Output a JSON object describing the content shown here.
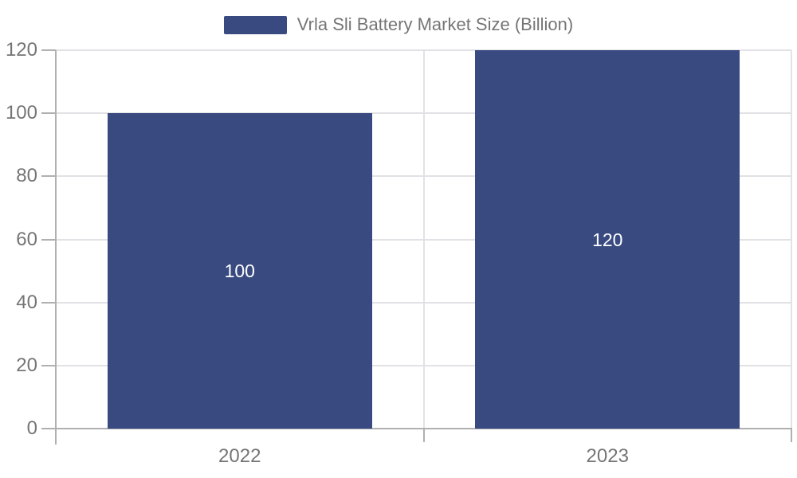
{
  "chart_data": {
    "type": "bar",
    "title": "",
    "legend": {
      "label": "Vrla Sli Battery Market Size (Billion)",
      "position": "top"
    },
    "categories": [
      "2022",
      "2023"
    ],
    "series": [
      {
        "name": "Vrla Sli Battery Market Size (Billion)",
        "values": [
          100,
          120
        ]
      }
    ],
    "bar_value_labels": [
      "100",
      "120"
    ],
    "xlabel": "",
    "ylabel": "",
    "ylim": [
      0,
      120
    ],
    "yticks": [
      0,
      20,
      40,
      60,
      80,
      100,
      120
    ],
    "grid": true,
    "colors": {
      "bar": "#394A81",
      "bar_label": "#ffffff",
      "axis_label": "#757575",
      "legend_text": "#757575",
      "grid_line": "#e2e2e6",
      "axis_line": "#b0b0b0"
    }
  }
}
